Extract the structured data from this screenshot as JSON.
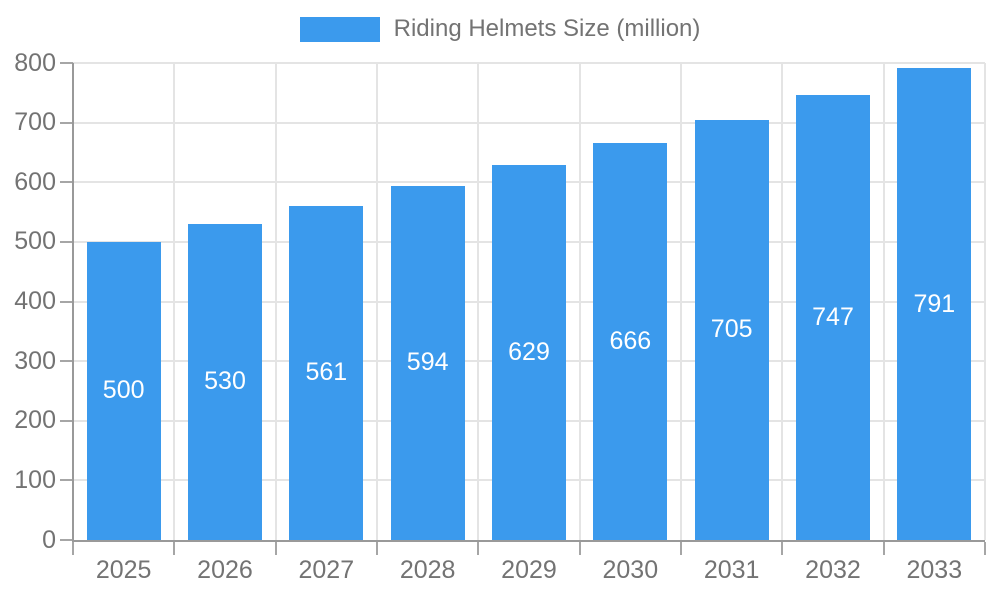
{
  "chart_data": {
    "type": "bar",
    "title": "",
    "legend_label": "Riding Helmets Size (million)",
    "legend_position": "top",
    "categories": [
      "2025",
      "2026",
      "2027",
      "2028",
      "2029",
      "2030",
      "2031",
      "2032",
      "2033"
    ],
    "values": [
      500,
      530,
      561,
      594,
      629,
      666,
      705,
      747,
      791
    ],
    "value_labels_inside_bars": true,
    "xlabel": "",
    "ylabel": "",
    "ylim": [
      0,
      800
    ],
    "ytick_step": 100,
    "ytick_labels": [
      "0",
      "100",
      "200",
      "300",
      "400",
      "500",
      "600",
      "700",
      "800"
    ],
    "grid": true,
    "colors": {
      "bar": "#3b9aed",
      "axis": "#999999",
      "tick": "#a6a6a6",
      "grid": "#e4e4e4",
      "axis_text": "#737373",
      "value_text": "#ffffff",
      "background": "#ffffff"
    }
  }
}
